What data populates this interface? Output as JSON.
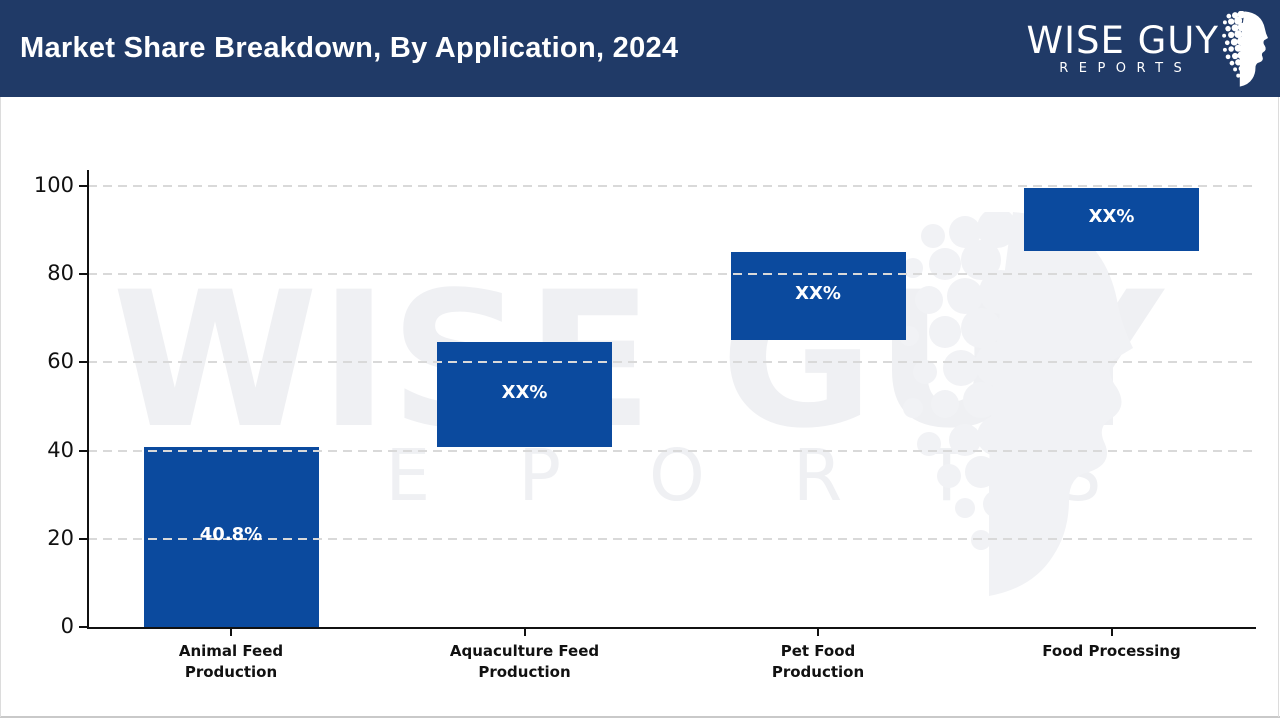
{
  "header": {
    "title": "Market Share Breakdown, By Application, 2024",
    "logo": {
      "line1": "WISE GUY",
      "line2": "REPORTS"
    }
  },
  "watermark": {
    "line1": "WISE GUY",
    "line2": "REPORTS"
  },
  "colors": {
    "header_bg": "#203a67",
    "title_text": "#ffffff",
    "bar": "#0b4a9e",
    "bar_label": "#ffffff",
    "gridline": "#d9d9d9",
    "axis": "#111111",
    "watermark": "#eff0f3"
  },
  "chart_data": {
    "type": "bar",
    "subtype": "waterfall",
    "title": "Market Share Breakdown, By Application, 2024",
    "categories": [
      "Animal Feed\nProduction",
      "Aquaculture Feed\nProduction",
      "Pet Food\nProduction",
      "Food Processing"
    ],
    "segments": [
      {
        "category": "Animal Feed Production",
        "start": 0,
        "end": 40.8,
        "label": "40.8%"
      },
      {
        "category": "Aquaculture Feed Production",
        "start": 40.8,
        "end": 64.6,
        "label": "XX%"
      },
      {
        "category": "Pet Food Production",
        "start": 65,
        "end": 85,
        "label": "XX%"
      },
      {
        "category": "Food Processing",
        "start": 85.3,
        "end": 99.6,
        "label": "XX%"
      }
    ],
    "xlabel": "",
    "ylabel": "",
    "ylim": [
      0,
      100
    ],
    "yticks": [
      0,
      20,
      40,
      60,
      80,
      100
    ],
    "grid": "dashed-horizontal",
    "legend": "none"
  }
}
